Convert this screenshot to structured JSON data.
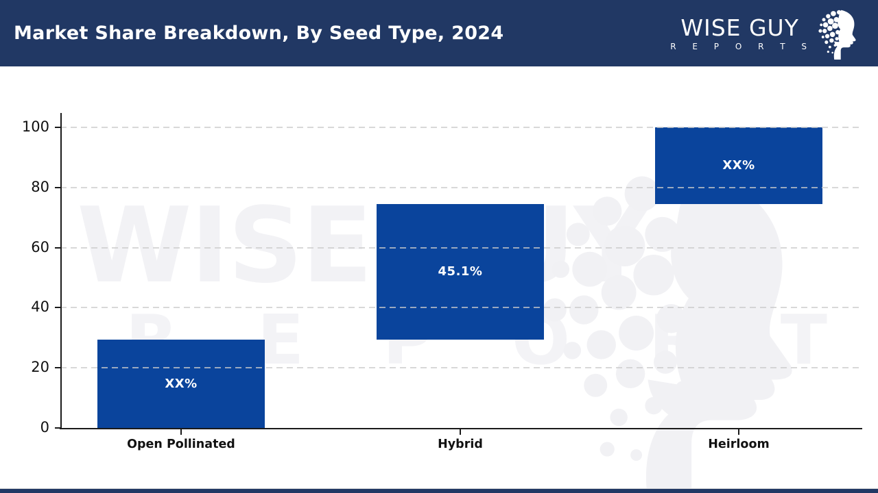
{
  "header": {
    "title": "Market Share Breakdown, By Seed Type, 2024",
    "logo": {
      "wordmark": "WISE GUY",
      "subtext": "R E P O R T S"
    }
  },
  "watermark": {
    "wordmark": "WISE GUY",
    "subtext": "R E P O R T S"
  },
  "chart_data": {
    "type": "bar",
    "subtype": "floating-waterfall",
    "title": "Market Share Breakdown, By Seed Type, 2024",
    "categories": [
      "Open Pollinated",
      "Hybrid",
      "Heirloom"
    ],
    "segments": [
      {
        "category": "Open Pollinated",
        "start": 0,
        "end": 29.4,
        "value": 29.4,
        "label": "XX%"
      },
      {
        "category": "Hybrid",
        "start": 29.4,
        "end": 74.5,
        "value": 45.1,
        "label": "45.1%"
      },
      {
        "category": "Heirloom",
        "start": 74.5,
        "end": 100,
        "value": 25.5,
        "label": "XX%"
      }
    ],
    "yticks": [
      0,
      20,
      40,
      60,
      80,
      100
    ],
    "ylim": [
      0,
      105
    ],
    "xlabel": "",
    "ylabel": "",
    "grid": "horizontal dashed, drawn over bars",
    "legend": "none",
    "bar_color": "#0a449c",
    "bar_label_color": "#ffffff"
  },
  "colors": {
    "header_bg": "#213864",
    "footer_bg": "#213864",
    "bar": "#0a449c",
    "gridline": "#d9d9d9",
    "axis": "#1a1a1a",
    "watermark": "#f2f2f5",
    "title_text": "#ffffff"
  }
}
